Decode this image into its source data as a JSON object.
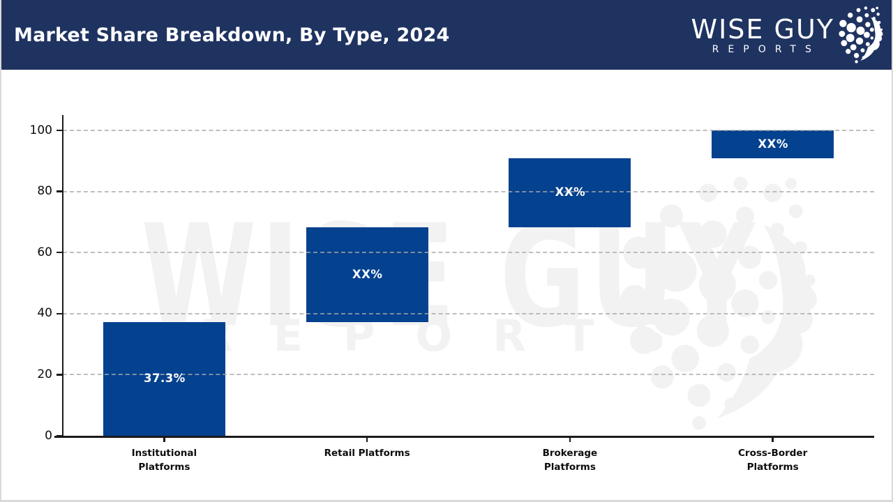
{
  "header": {
    "title": "Market Share Breakdown, By Type, 2024",
    "logo": {
      "name": "WISE GUY",
      "sub": "REPORTS"
    }
  },
  "watermark": {
    "name": "WISE GUY",
    "sub": "REPORTS"
  },
  "colors": {
    "header_bg": "#1f3361",
    "bar": "#04418f",
    "grid": "#a8a8a8",
    "axis": "#1a1a1a",
    "watermark": "#f2f2f2",
    "value_label": "#ffffff"
  },
  "chart_data": {
    "type": "bar",
    "subtype": "waterfall",
    "title": "Market Share Breakdown, By Type, 2024",
    "categories": [
      "Institutional\nPlatforms",
      "Retail Platforms",
      "Brokerage\nPlatforms",
      "Cross-Border\nPlatforms"
    ],
    "segments": [
      {
        "category": "Institutional Platforms",
        "start": 0,
        "end": 37.3,
        "value_label": "37.3%"
      },
      {
        "category": "Retail Platforms",
        "start": 37.3,
        "end": 68.3,
        "value_label": "XX%"
      },
      {
        "category": "Brokerage Platforms",
        "start": 68.3,
        "end": 90.9,
        "value_label": "XX%"
      },
      {
        "category": "Cross-Border Platforms",
        "start": 90.9,
        "end": 100.0,
        "value_label": "XX%"
      }
    ],
    "ylim": [
      0,
      100
    ],
    "yticks": [
      0,
      20,
      40,
      60,
      80,
      100
    ],
    "xlabel": "",
    "ylabel": "",
    "grid": "horizontal-dashed",
    "grid_above_bars": true,
    "legend": "none"
  }
}
